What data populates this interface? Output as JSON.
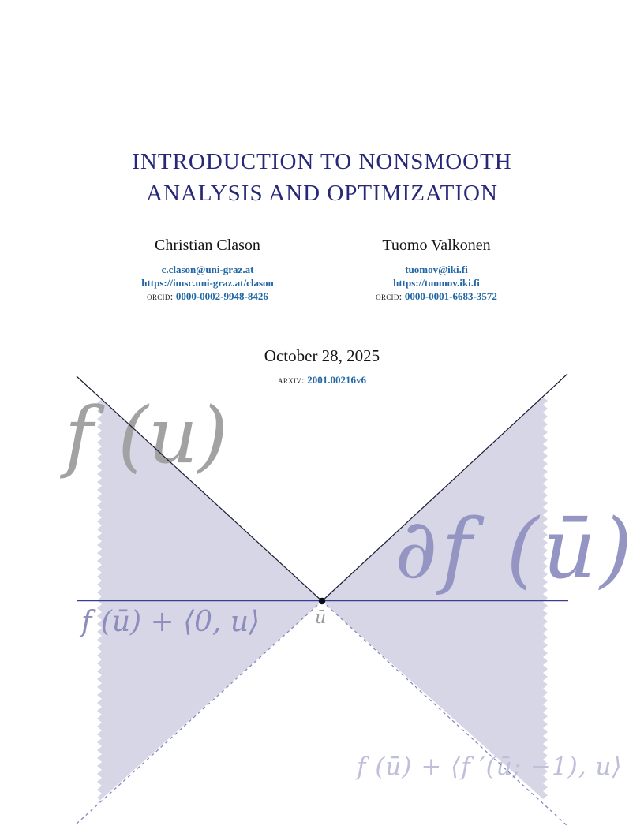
{
  "page": {
    "title_line1": "INTRODUCTION TO NONSMOOTH",
    "title_line2": "ANALYSIS AND OPTIMIZATION",
    "date": "October 28, 2025",
    "arxiv_label": "arxiv:",
    "arxiv_id": "2001.00216v6"
  },
  "authors": [
    {
      "name": "Christian Clason",
      "email": "c.clason@uni-graz.at",
      "website": "https://imsc.uni-graz.at/clason",
      "orcid_label": "orcid:",
      "orcid_id": "0000-0002-9948-8426"
    },
    {
      "name": "Tuomo Valkonen",
      "email": "tuomov@iki.fi",
      "website": "https://tuomov.iki.fi",
      "orcid_label": "orcid:",
      "orcid_id": "0000-0001-6683-3572"
    }
  ],
  "figure": {
    "function_label": "f (u)",
    "subdifferential_label": "∂f (ū)",
    "point_label": "ū",
    "tangent_zero_label": "f (ū) + ⟨0, u⟩",
    "tangent_directional_label": "f (ū) + ⟨f ′(ū; −1), u⟩"
  },
  "colors": {
    "title_navy": "#282878",
    "link_blue": "#2166a5",
    "shaded_lavender": "#d6d6e6",
    "function_label_gray": "#a2a2a2",
    "subdifferential_label": "#9595c3",
    "tangent_zero_label": "#8c8cbd",
    "tangent_directional_label": "#bfbfda",
    "axis_line": "#3c3c92",
    "cone_solid_line": "#1b1b33",
    "cone_dashed_line": "#8787bd"
  }
}
